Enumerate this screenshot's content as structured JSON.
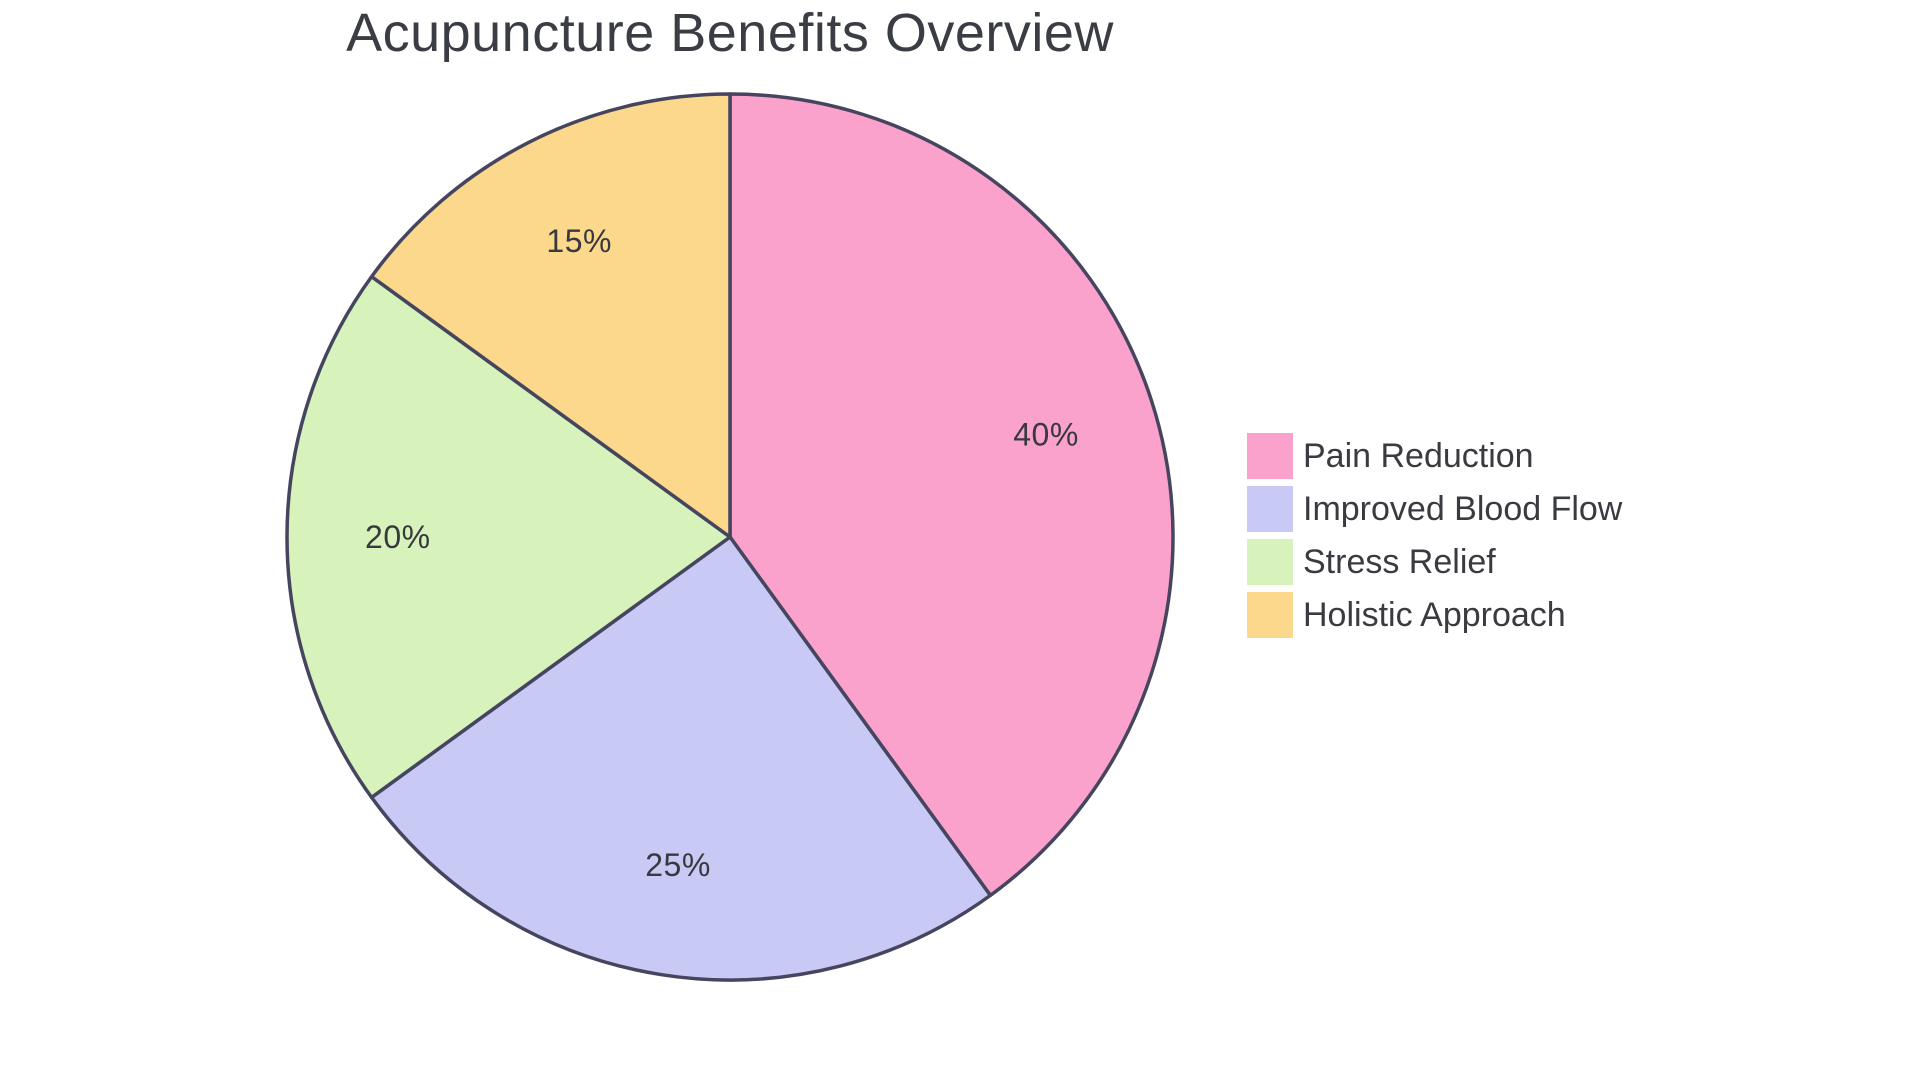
{
  "chart_data": {
    "type": "pie",
    "title": "Acupuncture Benefits Overview",
    "start_angle_deg": 0,
    "direction": "clockwise",
    "legend_position": "right",
    "label_radius_fraction": 0.75,
    "slices": [
      {
        "label": "Pain Reduction",
        "value": 40,
        "display": "40%",
        "color": "#FBA2CC"
      },
      {
        "label": "Improved Blood Flow",
        "value": 25,
        "display": "25%",
        "color": "#C8C9F4"
      },
      {
        "label": "Stress Relief",
        "value": 20,
        "display": "20%",
        "color": "#D7F2BA"
      },
      {
        "label": "Holistic Approach",
        "value": 15,
        "display": "15%",
        "color": "#FCD88C"
      }
    ],
    "slice_outline_color": "#45455F",
    "label_text_color": "#37393E",
    "title_text_color": "#3B3D45",
    "background_color": "#FFFFFF"
  }
}
